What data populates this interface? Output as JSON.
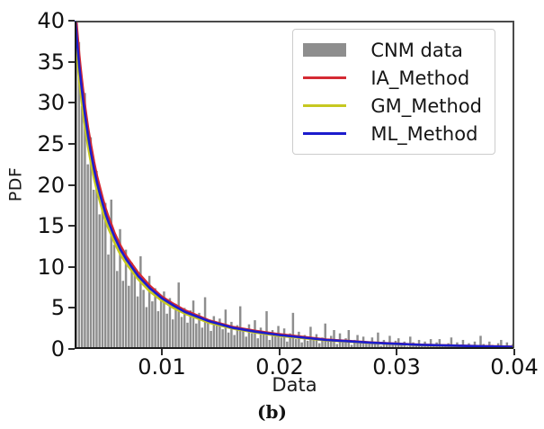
{
  "figure": {
    "caption": "(b)",
    "background": "#ffffff"
  },
  "chart_data": {
    "type": "bar",
    "subtype": "histogram-with-fitted-curves",
    "title": "",
    "xlabel": "Data",
    "ylabel": "PDF",
    "xlim": [
      0.0026,
      0.04
    ],
    "ylim": [
      0,
      40
    ],
    "grid": false,
    "xticks": [
      0.01,
      0.02,
      0.03,
      0.04
    ],
    "xtick_labels": [
      "0.01",
      "0.02",
      "0.03",
      "0.04"
    ],
    "yticks": [
      0,
      5,
      10,
      15,
      20,
      25,
      30,
      35,
      40
    ],
    "ytick_labels": [
      "0",
      "5",
      "10",
      "15",
      "20",
      "25",
      "30",
      "35",
      "40"
    ],
    "colors": {
      "bars": "#8e8e8e",
      "ia": "#d42a33",
      "gm": "#c6c820",
      "ml": "#1c1ccd",
      "spine_dark": "#1a1a1a",
      "spine_gray": "#4a4a4a"
    },
    "legend": {
      "position": "upper-right",
      "entries": [
        {
          "label": "CNM data",
          "type": "patch",
          "color": "#8e8e8e"
        },
        {
          "label": "IA_Method",
          "type": "line",
          "color": "#d42a33"
        },
        {
          "label": "GM_Method",
          "type": "line",
          "color": "#c6c820"
        },
        {
          "label": "ML_Method",
          "type": "line",
          "color": "#1c1ccd"
        }
      ]
    },
    "histogram": {
      "name": "CNM data",
      "color": "#8e8e8e",
      "bin_start": 0.0026,
      "bin_end": 0.04,
      "bin_count": 150,
      "heights": [
        40,
        37.4,
        29.6,
        31.2,
        22.5,
        25.8,
        19.4,
        21.7,
        16.4,
        18.1,
        17.8,
        11.5,
        18.2,
        12.7,
        9.5,
        14.6,
        8.3,
        12.1,
        7.7,
        10.5,
        9.8,
        6.4,
        11.3,
        7.2,
        5.1,
        8.9,
        5.8,
        7.4,
        4.6,
        6.6,
        7.0,
        4.3,
        6.2,
        3.6,
        5.5,
        8.1,
        3.9,
        5.0,
        3.2,
        4.7,
        5.9,
        3.1,
        4.4,
        2.6,
        6.3,
        3.4,
        2.2,
        4.0,
        2.9,
        3.7,
        2.4,
        4.8,
        2.0,
        3.3,
        1.7,
        2.9,
        5.2,
        2.2,
        1.5,
        3.0,
        1.9,
        3.5,
        1.3,
        2.6,
        1.8,
        4.6,
        1.1,
        2.3,
        1.6,
        2.8,
        1.4,
        2.5,
        0.9,
        1.9,
        4.4,
        1.2,
        2.1,
        0.8,
        1.7,
        1.0,
        2.7,
        1.1,
        1.8,
        0.7,
        1.4,
        3.1,
        0.9,
        1.6,
        2.3,
        0.6,
        1.9,
        0.8,
        1.3,
        2.3,
        0.5,
        1.1,
        1.7,
        0.7,
        1.5,
        0.9,
        0.6,
        1.4,
        0.9,
        2.0,
        0.4,
        1.1,
        0.7,
        1.6,
        0.5,
        1.0,
        1.3,
        0.5,
        0.9,
        0.3,
        1.5,
        0.8,
        0.4,
        1.1,
        0.6,
        0.9,
        0.4,
        1.2,
        0.6,
        0.8,
        1.2,
        0.4,
        0.5,
        0.7,
        1.4,
        0.4,
        0.8,
        0.3,
        1.1,
        0.5,
        0.7,
        0.2,
        0.9,
        0.4,
        1.6,
        0.6,
        0.3,
        0.9,
        0.5,
        0.2,
        0.7,
        1.1,
        0.4,
        0.8,
        0.3,
        0.6
      ]
    },
    "curve_x": [
      0.0026,
      0.0027,
      0.0028,
      0.0029,
      0.003,
      0.0031,
      0.0032,
      0.00335,
      0.0035,
      0.00375,
      0.004,
      0.00425,
      0.0045,
      0.00475,
      0.005,
      0.00525,
      0.0055,
      0.00575,
      0.006,
      0.0065,
      0.007,
      0.008,
      0.009,
      0.01,
      0.011,
      0.012,
      0.014,
      0.016,
      0.018,
      0.02,
      0.024,
      0.028,
      0.032,
      0.036,
      0.04
    ],
    "series": [
      {
        "name": "IA_Method",
        "color": "#d42a33",
        "y": [
          43.0,
          41.0,
          39.1,
          37.4,
          35.8,
          34.4,
          33.1,
          31.2,
          29.4,
          26.9,
          24.8,
          22.8,
          21.1,
          19.7,
          18.3,
          17.1,
          16.0,
          15.1,
          14.1,
          12.6,
          11.3,
          9.3,
          7.7,
          6.4,
          5.5,
          4.7,
          3.5,
          2.7,
          2.2,
          1.8,
          1.15,
          0.78,
          0.52,
          0.37,
          0.28
        ]
      },
      {
        "name": "GM_Method",
        "color": "#c6c820",
        "y": [
          39.2,
          37.4,
          35.7,
          34.2,
          32.7,
          31.4,
          30.2,
          28.5,
          26.9,
          24.6,
          22.6,
          20.8,
          19.3,
          18.0,
          16.7,
          15.6,
          14.6,
          13.8,
          12.9,
          11.5,
          10.4,
          8.5,
          7.0,
          5.9,
          5.0,
          4.3,
          3.2,
          2.5,
          2.0,
          1.6,
          1.05,
          0.71,
          0.47,
          0.34,
          0.24
        ]
      },
      {
        "name": "ML_Method",
        "color": "#1c1ccd",
        "y": [
          41.3,
          39.4,
          37.6,
          36.0,
          34.4,
          33.1,
          31.8,
          30.0,
          28.3,
          25.9,
          23.8,
          21.9,
          20.3,
          18.9,
          17.6,
          16.4,
          15.4,
          14.5,
          13.6,
          12.1,
          10.9,
          8.9,
          7.4,
          6.2,
          5.3,
          4.5,
          3.4,
          2.6,
          2.1,
          1.7,
          1.1,
          0.75,
          0.5,
          0.36,
          0.25
        ]
      }
    ]
  }
}
